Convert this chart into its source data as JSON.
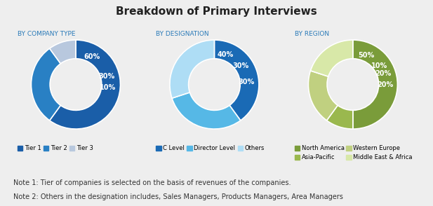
{
  "title": "Breakdown of Primary Interviews",
  "title_fontsize": 11,
  "background_color": "#eeeeee",
  "chart1_subtitle": "BY COMPANY TYPE",
  "chart1_values": [
    60,
    30,
    10
  ],
  "chart1_labels": [
    "60%",
    "30%",
    "10%"
  ],
  "chart1_colors": [
    "#1a5ea8",
    "#2980c4",
    "#b8c8de"
  ],
  "chart1_legend": [
    "Tier 1",
    "Tier 2",
    "Tier 3"
  ],
  "chart2_subtitle": "BY DESIGNATION",
  "chart2_values": [
    40,
    30,
    30
  ],
  "chart2_labels": [
    "40%",
    "30%",
    "30%"
  ],
  "chart2_colors": [
    "#1a6ab5",
    "#56b8e6",
    "#aeddf5"
  ],
  "chart2_legend": [
    "C Level",
    "Director Level",
    "Others"
  ],
  "chart3_subtitle": "BY REGION",
  "chart3_values": [
    50,
    10,
    20,
    20
  ],
  "chart3_labels": [
    "50%",
    "10%",
    "20%",
    "20%"
  ],
  "chart3_colors": [
    "#7a9c3a",
    "#9ab84e",
    "#c0d080",
    "#d8e8a8"
  ],
  "chart3_legend": [
    "North America",
    "Asia-Pacific",
    "Western Europe",
    "Middle East & Africa"
  ],
  "note1": "Note 1: Tier of companies is selected on the basis of revenues of the companies.",
  "note2": "Note 2: Others in the designation includes, Sales Managers, Products Managers, Area Managers",
  "note_fontsize": 7.0,
  "subtitle_color": "#2a7ab8",
  "label_color_dark": "#ffffff",
  "label_fontsize": 7
}
